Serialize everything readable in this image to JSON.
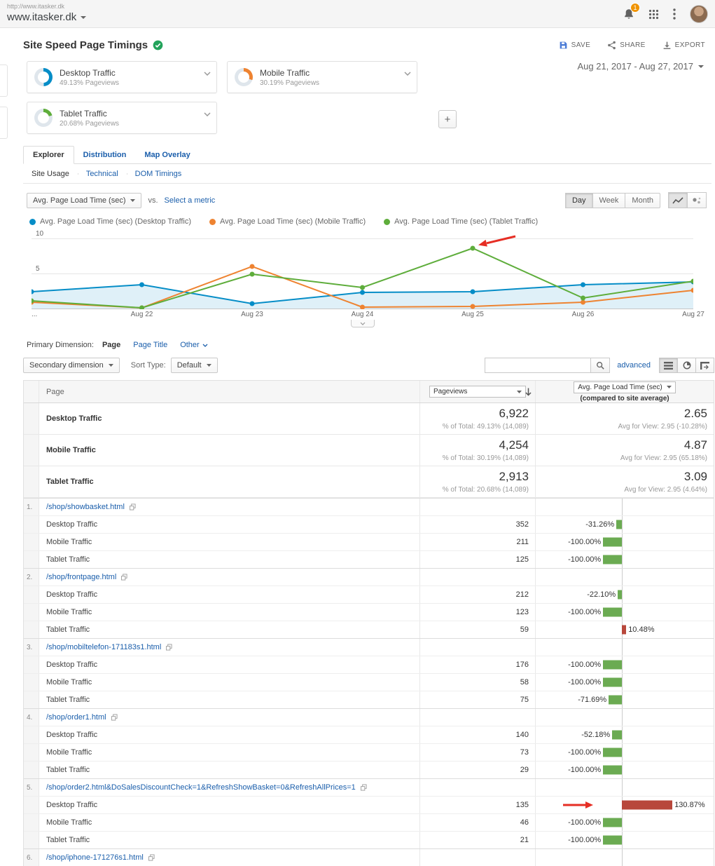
{
  "topbar": {
    "url": "http://www.itasker.dk",
    "site_name": "www.itasker.dk",
    "notification_count": "1"
  },
  "report_header": {
    "title": "Site Speed Page Timings",
    "save_label": "SAVE",
    "share_label": "SHARE",
    "export_label": "EXPORT",
    "date_range": "Aug 21, 2017 - Aug 27, 2017"
  },
  "segments": [
    {
      "name": "Desktop Traffic",
      "subtitle": "49.13% Pageviews",
      "percent": 49.13,
      "color": "#058dc7"
    },
    {
      "name": "Mobile Traffic",
      "subtitle": "30.19% Pageviews",
      "percent": 30.19,
      "color": "#ee8331"
    },
    {
      "name": "Tablet Traffic",
      "subtitle": "20.68% Pageviews",
      "percent": 20.68,
      "color": "#5ead3b"
    }
  ],
  "tabs": [
    {
      "label": "Explorer",
      "active": true
    },
    {
      "label": "Distribution",
      "active": false
    },
    {
      "label": "Map Overlay",
      "active": false
    }
  ],
  "subtabs": [
    {
      "label": "Site Usage",
      "active": true
    },
    {
      "label": "Technical",
      "active": false
    },
    {
      "label": "DOM Timings",
      "active": false
    }
  ],
  "chart_controls": {
    "metric_selector": "Avg. Page Load Time (sec)",
    "vs_label": "vs.",
    "select_metric_label": "Select a metric",
    "granularity": [
      {
        "label": "Day",
        "active": true
      },
      {
        "label": "Week",
        "active": false
      },
      {
        "label": "Month",
        "active": false
      }
    ]
  },
  "legend": [
    {
      "label": "Avg. Page Load Time (sec) (Desktop Traffic)",
      "color": "#058dc7"
    },
    {
      "label": "Avg. Page Load Time (sec) (Mobile Traffic)",
      "color": "#ee8331"
    },
    {
      "label": "Avg. Page Load Time (sec) (Tablet Traffic)",
      "color": "#5ead3b"
    }
  ],
  "chart_data": {
    "type": "line",
    "title": "Avg. Page Load Time (sec) by day, Aug 21 - Aug 27 2017",
    "x": [
      "Aug 21",
      "Aug 22",
      "Aug 23",
      "Aug 24",
      "Aug 25",
      "Aug 26",
      "Aug 27"
    ],
    "x_tick_labels": [
      "...",
      "Aug 22",
      "Aug 23",
      "Aug 24",
      "Aug 25",
      "Aug 26",
      "Aug 27"
    ],
    "ylim": [
      0,
      10
    ],
    "yticks": [
      10,
      5
    ],
    "grid": true,
    "legend_position": "top",
    "series": [
      {
        "name": "Avg. Page Load Time (sec) (Desktop Traffic)",
        "color": "#058dc7",
        "area": true,
        "values": [
          2.4,
          3.4,
          0.7,
          2.3,
          2.4,
          3.4,
          3.8
        ]
      },
      {
        "name": "Avg. Page Load Time (sec) (Mobile Traffic)",
        "color": "#ee8331",
        "values": [
          0.9,
          0.1,
          6.0,
          0.2,
          0.3,
          0.9,
          2.6
        ]
      },
      {
        "name": "Avg. Page Load Time (sec) (Tablet Traffic)",
        "color": "#5ead3b",
        "values": [
          1.1,
          0.1,
          4.9,
          3.0,
          8.6,
          1.5,
          3.9
        ]
      }
    ],
    "annotations": [
      "red arrow pointing at Tablet Traffic peak on Aug 25"
    ]
  },
  "dimension_bar": {
    "label": "Primary Dimension:",
    "options": [
      {
        "label": "Page",
        "active": true
      },
      {
        "label": "Page Title",
        "active": false
      },
      {
        "label": "Other",
        "active": false,
        "caret": true
      }
    ]
  },
  "table_toolbar": {
    "secondary_dimension_label": "Secondary dimension",
    "sort_type_label": "Sort Type:",
    "sort_type_value": "Default",
    "search_value": "",
    "advanced_label": "advanced"
  },
  "colors": {
    "link": "#1a5eab",
    "negative_bar": "#6bab52",
    "positive_bar": "#b8473b",
    "annotation_arrow": "#e62e24",
    "notification_badge": "#f09300"
  },
  "table": {
    "col_page": "Page",
    "col_pageviews": "Pageviews",
    "col_metric": "Avg. Page Load Time (sec)",
    "col_metric_sub": "(compared to site average)",
    "summary": [
      {
        "label": "Desktop Traffic",
        "pageviews": "6,922",
        "pageviews_sub": "% of Total: 49.13% (14,089)",
        "metric": "2.65",
        "metric_sub": "Avg for View: 2.95 (-10.28%)"
      },
      {
        "label": "Mobile Traffic",
        "pageviews": "4,254",
        "pageviews_sub": "% of Total: 30.19% (14,089)",
        "metric": "4.87",
        "metric_sub": "Avg for View: 2.95 (65.18%)"
      },
      {
        "label": "Tablet Traffic",
        "pageviews": "2,913",
        "pageviews_sub": "% of Total: 20.68% (14,089)",
        "metric": "3.09",
        "metric_sub": "Avg for View: 2.95 (4.64%)"
      }
    ],
    "rows": [
      {
        "index": "1.",
        "page": "/shop/showbasket.html",
        "segments": [
          {
            "label": "Desktop Traffic",
            "pageviews": "352",
            "pct": -31.26,
            "pct_label": "-31.26%"
          },
          {
            "label": "Mobile Traffic",
            "pageviews": "211",
            "pct": -100,
            "pct_label": "-100.00%"
          },
          {
            "label": "Tablet Traffic",
            "pageviews": "125",
            "pct": -100,
            "pct_label": "-100.00%"
          }
        ]
      },
      {
        "index": "2.",
        "page": "/shop/frontpage.html",
        "segments": [
          {
            "label": "Desktop Traffic",
            "pageviews": "212",
            "pct": -22.1,
            "pct_label": "-22.10%"
          },
          {
            "label": "Mobile Traffic",
            "pageviews": "123",
            "pct": -100,
            "pct_label": "-100.00%"
          },
          {
            "label": "Tablet Traffic",
            "pageviews": "59",
            "pct": 10.48,
            "pct_label": "10.48%"
          }
        ]
      },
      {
        "index": "3.",
        "page": "/shop/mobiltelefon-171183s1.html",
        "segments": [
          {
            "label": "Desktop Traffic",
            "pageviews": "176",
            "pct": -100,
            "pct_label": "-100.00%"
          },
          {
            "label": "Mobile Traffic",
            "pageviews": "58",
            "pct": -100,
            "pct_label": "-100.00%"
          },
          {
            "label": "Tablet Traffic",
            "pageviews": "75",
            "pct": -71.69,
            "pct_label": "-71.69%"
          }
        ]
      },
      {
        "index": "4.",
        "page": "/shop/order1.html",
        "segments": [
          {
            "label": "Desktop Traffic",
            "pageviews": "140",
            "pct": -52.18,
            "pct_label": "-52.18%"
          },
          {
            "label": "Mobile Traffic",
            "pageviews": "73",
            "pct": -100,
            "pct_label": "-100.00%"
          },
          {
            "label": "Tablet Traffic",
            "pageviews": "29",
            "pct": -100,
            "pct_label": "-100.00%"
          }
        ]
      },
      {
        "index": "5.",
        "page": "/shop/order2.html&DoSalesDiscountCheck=1&RefreshShowBasket=0&RefreshAllPrices=1",
        "segments": [
          {
            "label": "Desktop Traffic",
            "pageviews": "135",
            "pct": 130.87,
            "pct_label": "130.87%",
            "arrow": true
          },
          {
            "label": "Mobile Traffic",
            "pageviews": "46",
            "pct": -100,
            "pct_label": "-100.00%"
          },
          {
            "label": "Tablet Traffic",
            "pageviews": "21",
            "pct": -100,
            "pct_label": "-100.00%"
          }
        ]
      },
      {
        "index": "6.",
        "page": "/shop/iphone-171276s1.html",
        "segments": []
      }
    ]
  }
}
